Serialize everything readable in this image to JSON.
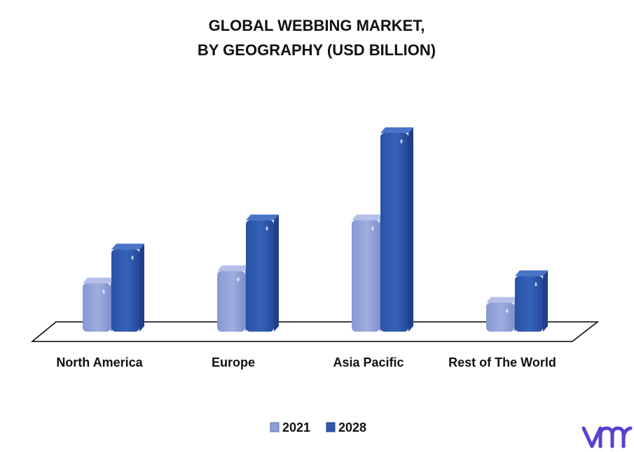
{
  "colors": {
    "series_2021": "#8e9fd6",
    "series_2028": "#2e58ad",
    "logo": "#5b3fd1"
  },
  "logo": {
    "text": "vmr",
    "icon": "vmr-logo"
  },
  "chart_data": {
    "type": "bar",
    "title": "GLOBAL WEBBING MARKET,",
    "subtitle": "BY GEOGRAPHY (USD BILLION)",
    "categories": [
      "North America",
      "Europe",
      "Asia Pacific",
      "Rest of The World"
    ],
    "series": [
      {
        "name": "2021",
        "values": [
          1.0,
          1.25,
          2.3,
          0.6
        ]
      },
      {
        "name": "2028",
        "values": [
          1.7,
          2.3,
          4.1,
          1.15
        ]
      }
    ],
    "ylim": [
      0,
      4.5
    ],
    "grid": false,
    "legend": "bottom"
  }
}
